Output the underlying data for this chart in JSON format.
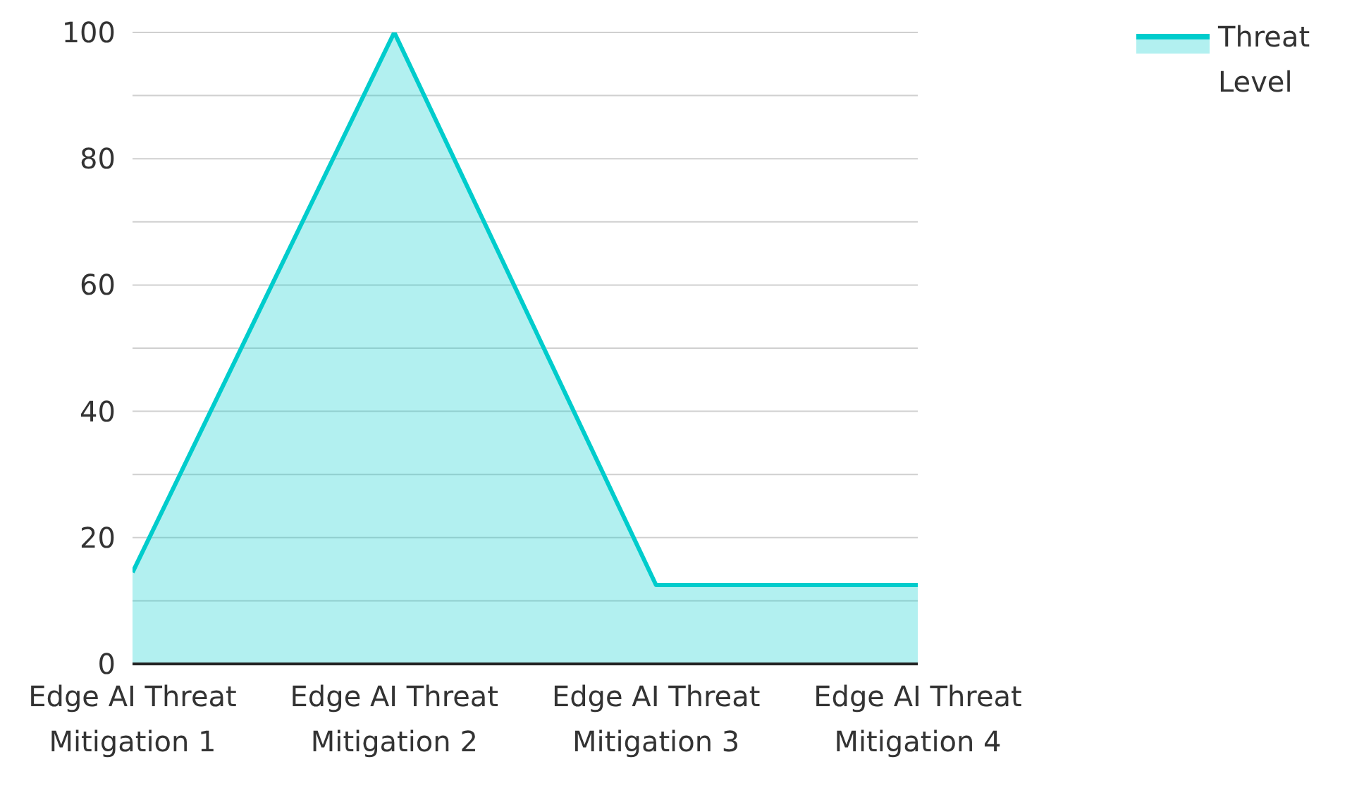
{
  "chart_data": {
    "type": "area",
    "categories": [
      "Edge AI Threat Mitigation 1",
      "Edge AI Threat Mitigation 2",
      "Edge AI Threat Mitigation 3",
      "Edge AI Threat Mitigation 4"
    ],
    "series": [
      {
        "name": "Threat Level",
        "color": "#00cccc",
        "values": [
          14.5,
          100,
          12.5,
          12.5
        ]
      }
    ],
    "ylim": [
      0,
      100
    ],
    "yticks": [
      0,
      {
        "value": 10,
        "label": null
      },
      20,
      {
        "value": 30,
        "label": null
      },
      40,
      {
        "value": 50,
        "label": null
      },
      60,
      {
        "value": 70,
        "label": null
      },
      80,
      {
        "value": 90,
        "label": null
      },
      100
    ],
    "grid": "y",
    "legend": "top right"
  }
}
